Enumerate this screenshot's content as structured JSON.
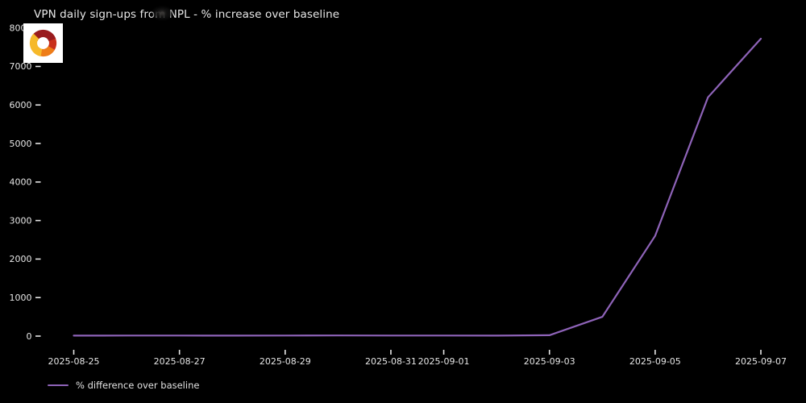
{
  "chart": {
    "title": "VPN daily sign-ups from NPL - % increase over baseline",
    "legend": {
      "label": "% difference over baseline"
    },
    "colors": {
      "background": "#000000",
      "line": "#8e63b8",
      "tick_text": "#e6e6e6",
      "title_text": "#e8e8e8"
    }
  },
  "logo": {
    "icon": "orange-swirl-logo-icon",
    "background": "#ffffff",
    "colors": {
      "dark_red": "#991b1e",
      "red": "#c9301c",
      "orange": "#ee7d18",
      "yellow": "#f6b92a"
    }
  },
  "chart_data": {
    "type": "line",
    "title": "VPN daily sign-ups from NPL - % increase over baseline",
    "xlabel": "",
    "ylabel": "",
    "x": [
      "2025-08-25",
      "2025-08-26",
      "2025-08-27",
      "2025-08-28",
      "2025-08-29",
      "2025-08-30",
      "2025-08-31",
      "2025-09-01",
      "2025-09-02",
      "2025-09-03",
      "2025-09-04",
      "2025-09-05",
      "2025-09-06",
      "2025-09-07"
    ],
    "series": [
      {
        "name": "% difference over baseline",
        "color": "#8e63b8",
        "values": [
          12,
          14,
          15,
          13,
          15,
          16,
          14,
          15,
          13,
          22,
          500,
          2600,
          6200,
          7720
        ]
      }
    ],
    "x_tick_labels": [
      "2025-08-25",
      "2025-08-27",
      "2025-08-29",
      "2025-08-31",
      "2025-09-01",
      "2025-09-03",
      "2025-09-05",
      "2025-09-07"
    ],
    "x_tick_days": [
      0,
      2,
      4,
      6,
      7,
      9,
      11,
      13
    ],
    "y_ticks": [
      0,
      1000,
      2000,
      3000,
      4000,
      5000,
      6000,
      7000,
      8000
    ],
    "ylim": [
      -390,
      8090
    ],
    "grid": false,
    "legend_position": "lower-left"
  }
}
